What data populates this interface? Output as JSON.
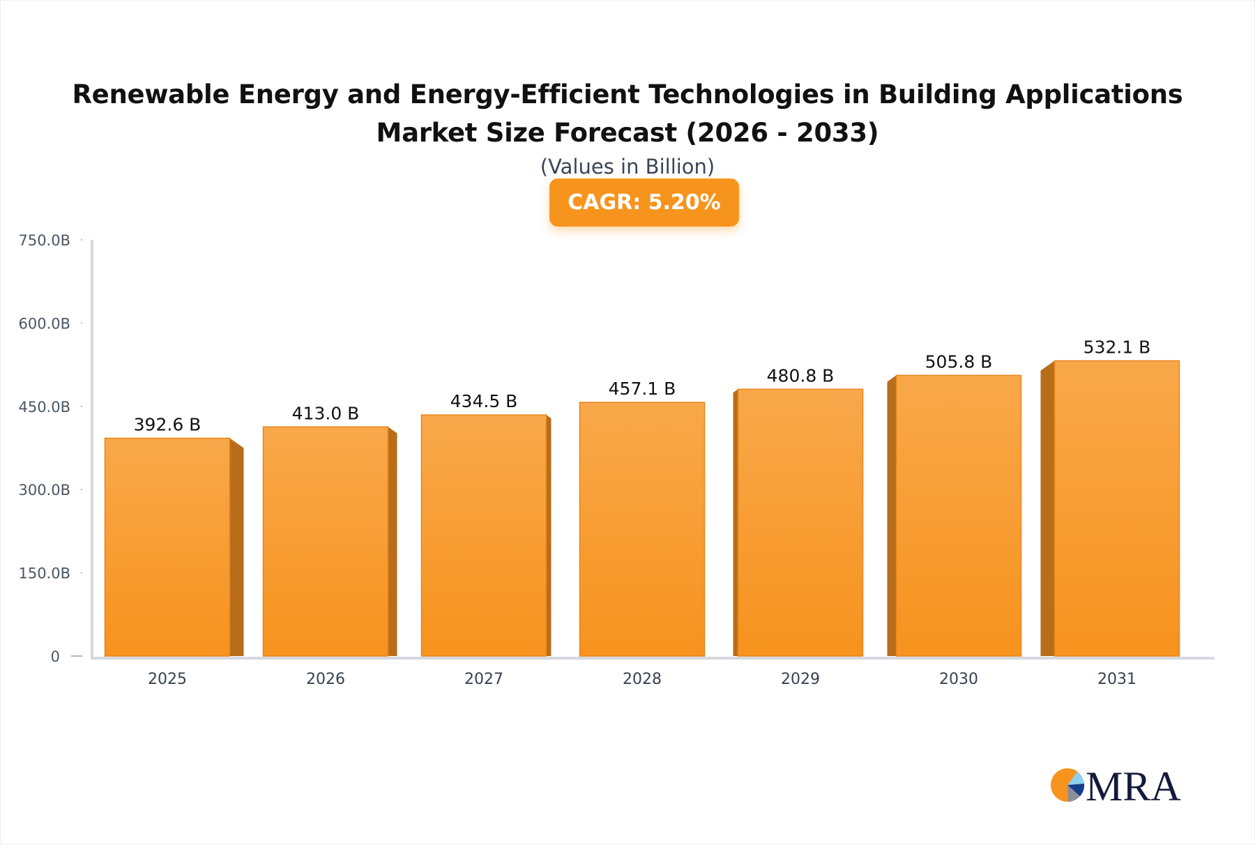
{
  "chart_data": {
    "type": "bar",
    "title_lines": [
      "Renewable Energy and Energy-Efficient Technologies in Building Applications",
      "Market Size Forecast (2026 - 2033)"
    ],
    "subtitle": "(Values in Billion)",
    "badge": "CAGR: 5.20%",
    "categories": [
      "2025",
      "2026",
      "2027",
      "2028",
      "2029",
      "2030",
      "2031"
    ],
    "values": [
      392.6,
      413.0,
      434.5,
      457.1,
      480.8,
      505.8,
      532.1
    ],
    "data_labels": [
      "392.6 B",
      "413.0 B",
      "434.5 B",
      "457.1 B",
      "480.8 B",
      "505.8 B",
      "532.1 B"
    ],
    "y_ticks": [
      0,
      150,
      300,
      450,
      600,
      750
    ],
    "y_tick_labels": [
      "0",
      "150.0B",
      "300.0B",
      "450.0B",
      "600.0B",
      "750.0B"
    ],
    "ylim": [
      0,
      750
    ],
    "xlabel": "",
    "ylabel": "",
    "grid": false,
    "legend": "none",
    "colors": {
      "bar_top": "#f8a84a",
      "bar_bottom": "#f7931e",
      "bar_side": "#b86d1a",
      "badge": "#f7941d",
      "axis": "#d5d9df"
    }
  },
  "logo": {
    "text": "MRA"
  }
}
